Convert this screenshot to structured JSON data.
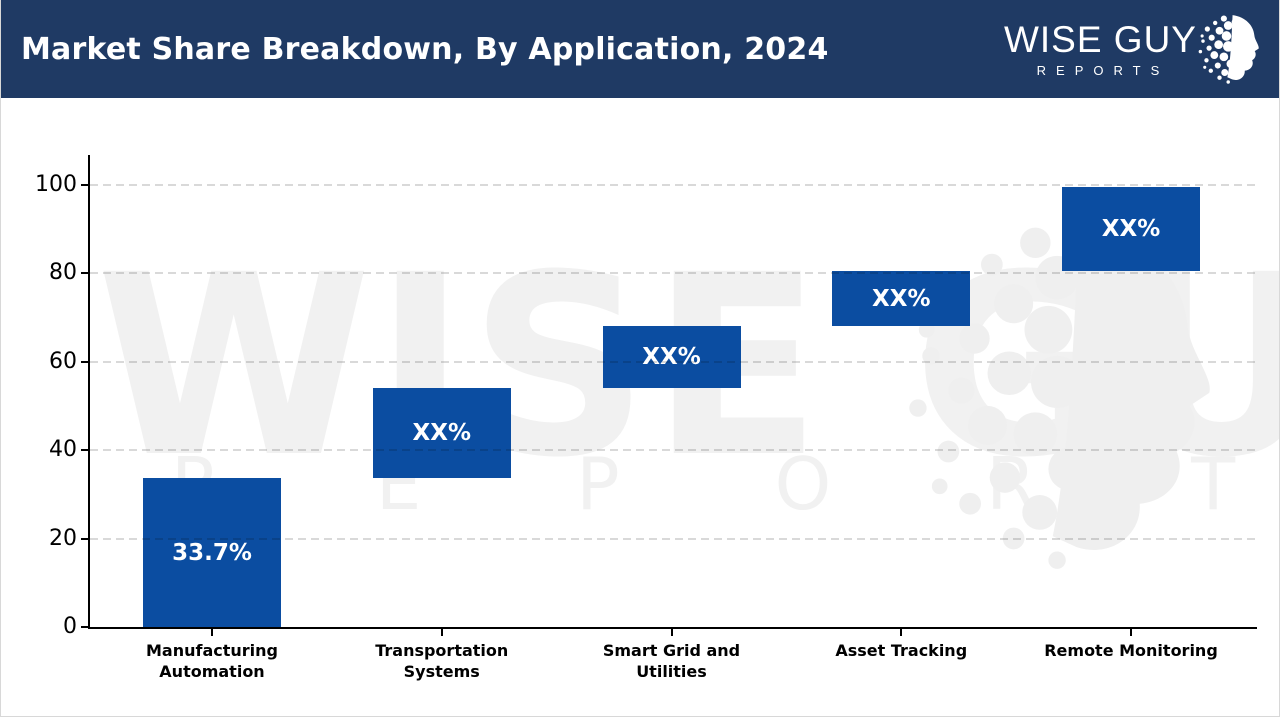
{
  "header": {
    "title": "Market Share Breakdown, By Application, 2024",
    "brand": {
      "name": "WISE GUY",
      "tagline": "REPORTS"
    }
  },
  "watermark": {
    "line1": "WISE GUY",
    "line2": "R E P O R T S"
  },
  "chart_data": {
    "type": "bar",
    "subtype": "waterfall",
    "title": "Market Share Breakdown, By Application, 2024",
    "xlabel": "",
    "ylabel": "",
    "ylim": [
      0,
      107
    ],
    "yticks": [
      0,
      20,
      40,
      60,
      80,
      100
    ],
    "grid": "horizontal-dashed",
    "legend": "none",
    "categories": [
      "Manufacturing Automation",
      "Transportation Systems",
      "Smart Grid and Utilities",
      "Asset Tracking",
      "Remote Monitoring"
    ],
    "category_lines": [
      [
        "Manufacturing",
        "Automation"
      ],
      [
        "Transportation",
        "Systems"
      ],
      [
        "Smart Grid and",
        "Utilities"
      ],
      [
        "Asset Tracking"
      ],
      [
        "Remote Monitoring"
      ]
    ],
    "segments": [
      {
        "category": "Manufacturing Automation",
        "label": "33.7%",
        "start": 0,
        "end": 33.7
      },
      {
        "category": "Transportation Systems",
        "label": "XX%",
        "start": 33.7,
        "end": 54
      },
      {
        "category": "Smart Grid and Utilities",
        "label": "XX%",
        "start": 54,
        "end": 68
      },
      {
        "category": "Asset Tracking",
        "label": "XX%",
        "start": 68,
        "end": 80.5
      },
      {
        "category": "Remote Monitoring",
        "label": "XX%",
        "start": 80.5,
        "end": 99.6
      }
    ]
  },
  "colors": {
    "header_bg": "#1f3a64",
    "bar": "#0b4da1",
    "bar_label": "#ffffff",
    "grid": "rgba(0,0,0,0.15)",
    "axis": "#000000",
    "watermark": "#f1f1f1",
    "page_border": "#d8d8d8"
  }
}
